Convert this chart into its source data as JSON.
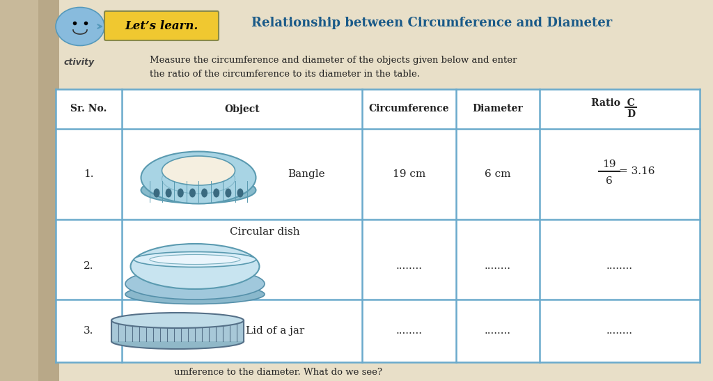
{
  "title_box": "Let’s learn.",
  "title_main": "Relationship between Circumference and Diameter",
  "instruction": "Measure the circumference and diameter of the objects given below and enter\nthe ratio of the circumference to its diameter in the table.",
  "activity_label": "ctivity",
  "col_headers": [
    "Sr. No.",
    "Object",
    "Circumference",
    "Diameter",
    "Ratio C/D"
  ],
  "footer_text": "umference to the diameter. What do we see?",
  "bg_color": "#c8b99a",
  "page_color": "#e8dfc8",
  "table_bg": "#ede4cc",
  "border_color": "#6aaacc",
  "title_box_bg": "#f0c830",
  "title_box_border": "#8a8a4a",
  "title_color": "#1a5a88",
  "text_color": "#222222",
  "bangle_color": "#a8d4e4",
  "bangle_border": "#5a9ab0",
  "bangle_dot": "#3a6a80",
  "dish_top": "#c0dde8",
  "dish_mid": "#a0c4d8",
  "dish_bot": "#80aabf",
  "lid_top": "#b0ccd8",
  "lid_side": "#8aaab8",
  "lid_line": "#6a8a98"
}
